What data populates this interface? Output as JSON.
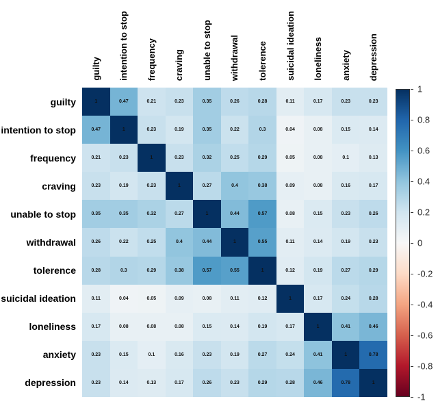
{
  "chart_data": {
    "type": "heatmap",
    "title": "",
    "variables": [
      "guilty",
      "intention to stop",
      "frequency",
      "craving",
      "unable to stop",
      "withdrawal",
      "tolerence",
      "suicidal ideation",
      "loneliness",
      "anxiety",
      "depression"
    ],
    "matrix": [
      [
        1,
        0.47,
        0.21,
        0.23,
        0.35,
        0.26,
        0.28,
        0.11,
        0.17,
        0.23,
        0.23
      ],
      [
        0.47,
        1,
        0.23,
        0.19,
        0.35,
        0.22,
        0.3,
        0.04,
        0.08,
        0.15,
        0.14
      ],
      [
        0.21,
        0.23,
        1,
        0.23,
        0.32,
        0.25,
        0.29,
        0.05,
        0.08,
        0.1,
        0.13
      ],
      [
        0.23,
        0.19,
        0.23,
        1,
        0.27,
        0.4,
        0.38,
        0.09,
        0.08,
        0.16,
        0.17
      ],
      [
        0.35,
        0.35,
        0.32,
        0.27,
        1,
        0.44,
        0.57,
        0.08,
        0.15,
        0.23,
        0.26
      ],
      [
        0.26,
        0.22,
        0.25,
        0.4,
        0.44,
        1,
        0.55,
        0.11,
        0.14,
        0.19,
        0.23
      ],
      [
        0.28,
        0.3,
        0.29,
        0.38,
        0.57,
        0.55,
        1,
        0.12,
        0.19,
        0.27,
        0.29
      ],
      [
        0.11,
        0.04,
        0.05,
        0.09,
        0.08,
        0.11,
        0.12,
        1,
        0.17,
        0.24,
        0.28
      ],
      [
        0.17,
        0.08,
        0.08,
        0.08,
        0.15,
        0.14,
        0.19,
        0.17,
        1,
        0.41,
        0.46
      ],
      [
        0.23,
        0.15,
        0.1,
        0.16,
        0.23,
        0.19,
        0.27,
        0.24,
        0.41,
        1,
        0.78
      ],
      [
        0.23,
        0.14,
        0.13,
        0.17,
        0.26,
        0.23,
        0.29,
        0.28,
        0.46,
        0.78,
        1
      ]
    ],
    "colorbar": {
      "position": "right",
      "range": [
        -1,
        1
      ],
      "tick_labels": [
        "1",
        "0.8",
        "0.6",
        "0.4",
        "0.2",
        "0",
        "-0.2",
        "-0.4",
        "-0.6",
        "-0.8",
        "-1"
      ],
      "ticks": [
        1,
        0.8,
        0.6,
        0.4,
        0.2,
        0,
        -0.2,
        -0.4,
        -0.6,
        -0.8,
        -1
      ]
    },
    "colormap": {
      "name": "RdBu",
      "stops": [
        {
          "value": -1,
          "color": "#67001f"
        },
        {
          "value": -0.8,
          "color": "#b2182b"
        },
        {
          "value": -0.6,
          "color": "#d6604d"
        },
        {
          "value": -0.4,
          "color": "#f4a582"
        },
        {
          "value": -0.2,
          "color": "#fddbc7"
        },
        {
          "value": 0,
          "color": "#f7f7f7"
        },
        {
          "value": 0.2,
          "color": "#d1e5f0"
        },
        {
          "value": 0.4,
          "color": "#92c5de"
        },
        {
          "value": 0.6,
          "color": "#4393c3"
        },
        {
          "value": 0.8,
          "color": "#2166ac"
        },
        {
          "value": 1,
          "color": "#053061"
        }
      ]
    },
    "value_text_color": "#111111",
    "grid": false,
    "background": "#ffffff"
  }
}
